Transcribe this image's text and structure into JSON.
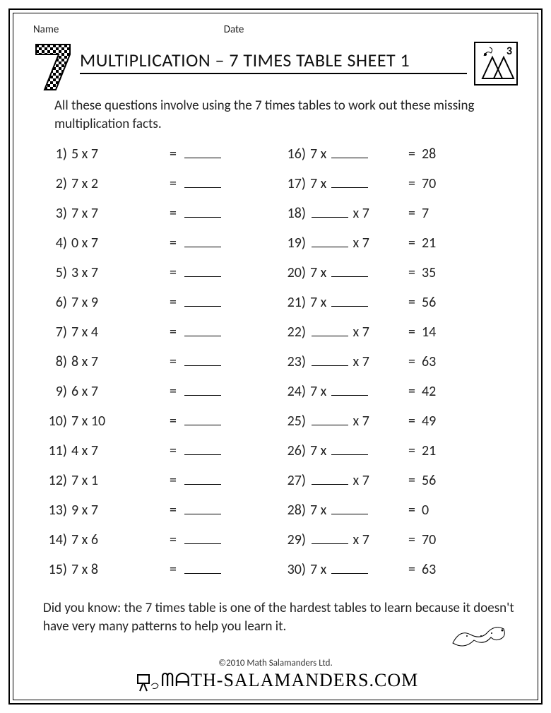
{
  "labels": {
    "name": "Name",
    "date": "Date"
  },
  "header": {
    "title": "MULTIPLICATION – 7 TIMES TABLE SHEET 1",
    "big_digit": "7",
    "badge_digit": "3"
  },
  "intro": "All these questions involve using the 7 times tables to work out these missing multiplication facts.",
  "equals": "=",
  "times": "x",
  "problems_left": [
    {
      "n": "1)",
      "a": "5",
      "b": "7"
    },
    {
      "n": "2)",
      "a": "7",
      "b": "2"
    },
    {
      "n": "3)",
      "a": "7",
      "b": "7"
    },
    {
      "n": "4)",
      "a": "0",
      "b": "7"
    },
    {
      "n": "5)",
      "a": "3",
      "b": "7"
    },
    {
      "n": "6)",
      "a": "7",
      "b": "9"
    },
    {
      "n": "7)",
      "a": "7",
      "b": "4"
    },
    {
      "n": "8)",
      "a": "8",
      "b": "7"
    },
    {
      "n": "9)",
      "a": "6",
      "b": "7"
    },
    {
      "n": "10)",
      "a": "7",
      "b": "10"
    },
    {
      "n": "11)",
      "a": "4",
      "b": "7"
    },
    {
      "n": "12)",
      "a": "7",
      "b": "1"
    },
    {
      "n": "13)",
      "a": "9",
      "b": "7"
    },
    {
      "n": "14)",
      "a": "7",
      "b": "6"
    },
    {
      "n": "15)",
      "a": "7",
      "b": "8"
    }
  ],
  "problems_right": [
    {
      "n": "16)",
      "blank": "b",
      "known": "7",
      "result": "28"
    },
    {
      "n": "17)",
      "blank": "b",
      "known": "7",
      "result": "70"
    },
    {
      "n": "18)",
      "blank": "a",
      "known": "7",
      "result": "7"
    },
    {
      "n": "19)",
      "blank": "a",
      "known": "7",
      "result": "21"
    },
    {
      "n": "20)",
      "blank": "b",
      "known": "7",
      "result": "35"
    },
    {
      "n": "21)",
      "blank": "b",
      "known": "7",
      "result": "56"
    },
    {
      "n": "22)",
      "blank": "a",
      "known": "7",
      "result": "14"
    },
    {
      "n": "23)",
      "blank": "a",
      "known": "7",
      "result": "63"
    },
    {
      "n": "24)",
      "blank": "b",
      "known": "7",
      "result": "42"
    },
    {
      "n": "25)",
      "blank": "a",
      "known": "7",
      "result": "49"
    },
    {
      "n": "26)",
      "blank": "b",
      "known": "7",
      "result": "21"
    },
    {
      "n": "27)",
      "blank": "a",
      "known": "7",
      "result": "56"
    },
    {
      "n": "28)",
      "blank": "b",
      "known": "7",
      "result": "0"
    },
    {
      "n": "29)",
      "blank": "a",
      "known": "7",
      "result": "70"
    },
    {
      "n": "30)",
      "blank": "b",
      "known": "7",
      "result": "63"
    }
  ],
  "footnote": "Did you know: the 7 times table is one of the hardest tables to learn because it doesn't have very many patterns to help you learn it.",
  "footer": {
    "copyright": "©2010 Math Salamanders Ltd.",
    "brand": "ᗰᗩTH-SALAMANDERS.COM"
  },
  "colors": {
    "text": "#222222",
    "border": "#000000",
    "background": "#ffffff"
  },
  "typography": {
    "title_fontsize": 26,
    "body_fontsize": 19,
    "problem_fontsize": 20,
    "brand_fontsize": 26
  }
}
